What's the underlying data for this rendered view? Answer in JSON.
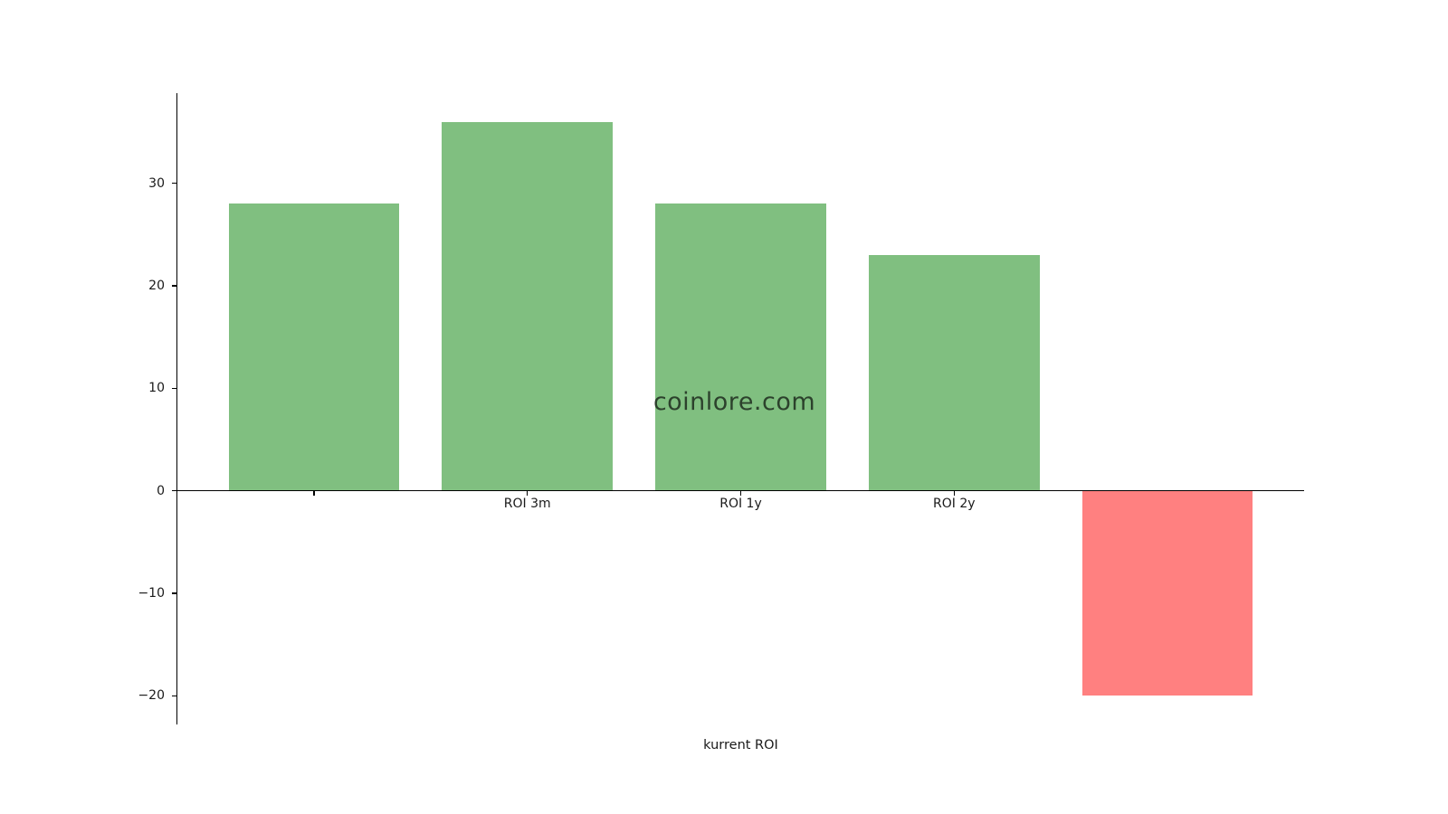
{
  "page": {
    "background": "#ffffff"
  },
  "watermark": {
    "text": "coinlore.com"
  },
  "chart_data": {
    "type": "bar",
    "categories": [
      "",
      "ROI 3m",
      "ROI 1y",
      "ROI 2y",
      ""
    ],
    "values": [
      28,
      36,
      28,
      23,
      -20
    ],
    "title": "",
    "xlabel": "kurrent ROI",
    "ylabel": "",
    "ylim": [
      -22.8,
      38.8
    ],
    "xlim": [
      -0.64,
      4.64
    ],
    "yticks": [
      30,
      20,
      10,
      0,
      -10,
      -20
    ],
    "bar_width": 0.8,
    "positive_color": "#80bf80",
    "negative_color": "#ff8080",
    "axis_color": "#000000",
    "grid": false,
    "legend": "none",
    "watermark_text": "coinlore.com"
  }
}
